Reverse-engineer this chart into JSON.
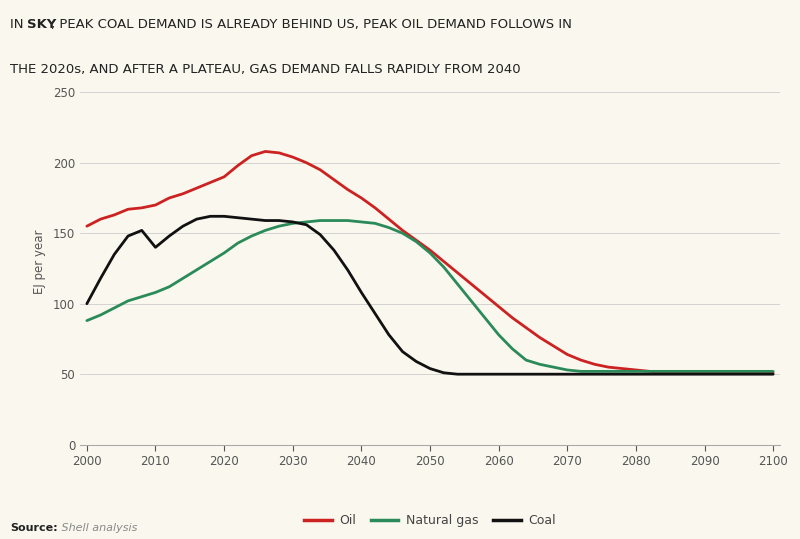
{
  "ylabel": "EJ per year",
  "bg_color": "#faf8ee",
  "header_bg": "#f5d800",
  "oil_color": "#cc2222",
  "gas_color": "#2a8a5a",
  "coal_color": "#111111",
  "ylim": [
    0,
    260
  ],
  "yticks": [
    0,
    50,
    100,
    150,
    200,
    250
  ],
  "xticks": [
    2000,
    2010,
    2020,
    2030,
    2040,
    2050,
    2060,
    2070,
    2080,
    2090,
    2100
  ],
  "oil_x": [
    2000,
    2002,
    2004,
    2006,
    2008,
    2010,
    2012,
    2014,
    2016,
    2018,
    2020,
    2022,
    2024,
    2026,
    2028,
    2030,
    2032,
    2034,
    2036,
    2038,
    2040,
    2042,
    2044,
    2046,
    2048,
    2050,
    2052,
    2054,
    2056,
    2058,
    2060,
    2062,
    2064,
    2066,
    2068,
    2070,
    2072,
    2074,
    2076,
    2078,
    2080,
    2082,
    2084,
    2086,
    2088,
    2090,
    2092,
    2094,
    2096,
    2098,
    2100
  ],
  "oil_y": [
    155,
    160,
    163,
    167,
    168,
    170,
    175,
    178,
    182,
    186,
    190,
    198,
    205,
    208,
    207,
    204,
    200,
    195,
    188,
    181,
    175,
    168,
    160,
    152,
    145,
    138,
    130,
    122,
    114,
    106,
    98,
    90,
    83,
    76,
    70,
    64,
    60,
    57,
    55,
    54,
    53,
    52,
    51,
    51,
    51,
    51,
    51,
    51,
    51,
    51,
    51
  ],
  "gas_x": [
    2000,
    2002,
    2004,
    2006,
    2008,
    2010,
    2012,
    2014,
    2016,
    2018,
    2020,
    2022,
    2024,
    2026,
    2028,
    2030,
    2032,
    2034,
    2036,
    2038,
    2040,
    2042,
    2044,
    2046,
    2048,
    2050,
    2052,
    2054,
    2056,
    2058,
    2060,
    2062,
    2064,
    2066,
    2068,
    2070,
    2072,
    2074,
    2076,
    2078,
    2080,
    2082,
    2084,
    2086,
    2088,
    2090,
    2092,
    2094,
    2096,
    2098,
    2100
  ],
  "gas_y": [
    88,
    92,
    97,
    102,
    105,
    108,
    112,
    118,
    124,
    130,
    136,
    143,
    148,
    152,
    155,
    157,
    158,
    159,
    159,
    159,
    158,
    157,
    154,
    150,
    144,
    136,
    126,
    114,
    102,
    90,
    78,
    68,
    60,
    57,
    55,
    53,
    52,
    52,
    52,
    52,
    52,
    52,
    52,
    52,
    52,
    52,
    52,
    52,
    52,
    52,
    52
  ],
  "coal_x": [
    2000,
    2002,
    2004,
    2006,
    2008,
    2010,
    2012,
    2014,
    2016,
    2018,
    2020,
    2022,
    2024,
    2026,
    2028,
    2030,
    2032,
    2034,
    2036,
    2038,
    2040,
    2042,
    2044,
    2046,
    2048,
    2050,
    2052,
    2054,
    2056,
    2058,
    2060,
    2062,
    2064,
    2066,
    2068,
    2070,
    2072,
    2074,
    2076,
    2078,
    2080,
    2082,
    2084,
    2086,
    2088,
    2090,
    2092,
    2094,
    2096,
    2098,
    2100
  ],
  "coal_y": [
    100,
    118,
    135,
    148,
    152,
    140,
    148,
    155,
    160,
    162,
    162,
    161,
    160,
    159,
    159,
    158,
    156,
    149,
    138,
    124,
    108,
    93,
    78,
    66,
    59,
    54,
    51,
    50,
    50,
    50,
    50,
    50,
    50,
    50,
    50,
    50,
    50,
    50,
    50,
    50,
    50,
    50,
    50,
    50,
    50,
    50,
    50,
    50,
    50,
    50,
    50
  ]
}
